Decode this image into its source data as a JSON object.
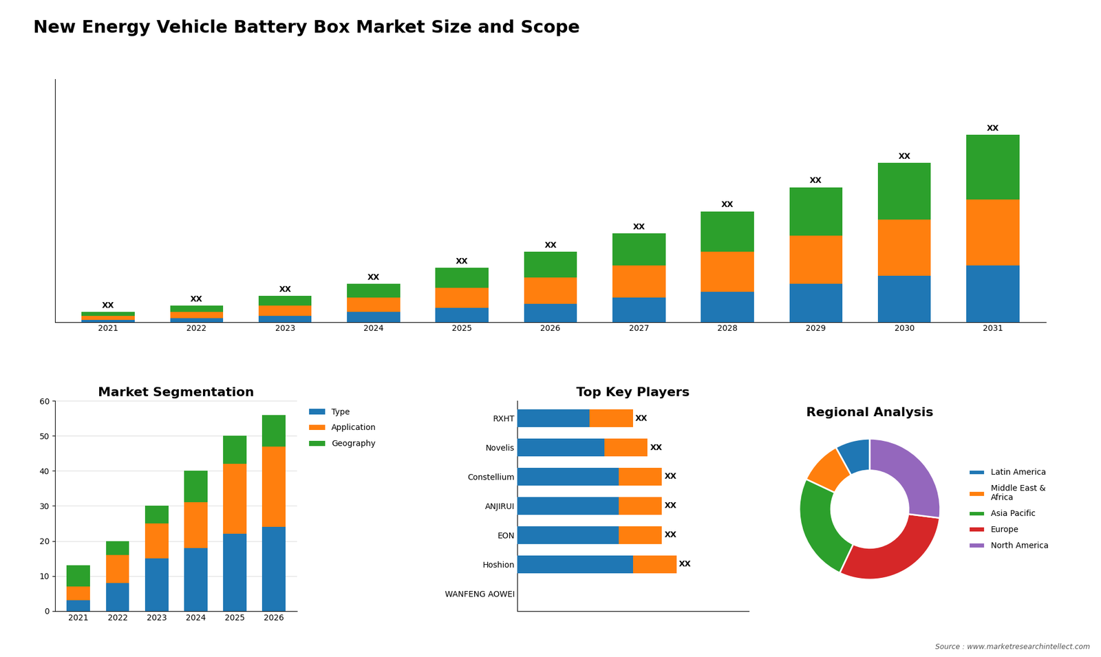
{
  "title": "New Energy Vehicle Battery Box Market Size and Scope",
  "annotations": [
    "Source : www.marketresearchintellect.com"
  ],
  "chart_data": [
    {
      "type": "bar",
      "stacked": true,
      "tick_labels": "x",
      "categories": [
        "2021",
        "2022",
        "2023",
        "2024",
        "2025",
        "2026",
        "2027",
        "2028",
        "2029",
        "2030",
        "2031"
      ],
      "series": [
        {
          "values": [
            1,
            2,
            3,
            5,
            7,
            9,
            12,
            15,
            19,
            23,
            28
          ]
        },
        {
          "values": [
            2,
            3,
            5,
            7,
            10,
            13,
            16,
            20,
            24,
            28,
            33
          ]
        },
        {
          "values": [
            2,
            3,
            5,
            7,
            10,
            13,
            16,
            20,
            24,
            28,
            32
          ],
          "value_labels": [
            "XX",
            "XX",
            "XX",
            "XX",
            "XX",
            "XX",
            "XX",
            "XX",
            "XX",
            "XX",
            "XX"
          ]
        }
      ],
      "ylim": [
        0,
        120.9
      ]
    },
    {
      "type": "bar",
      "stacked": true,
      "title": "Market Segmentation",
      "categories": [
        "2021",
        "2022",
        "2023",
        "2024",
        "2025",
        "2026"
      ],
      "series": [
        {
          "name": "Type",
          "values": [
            3,
            8,
            15,
            18,
            22,
            24
          ]
        },
        {
          "name": "Application",
          "values": [
            4,
            8,
            10,
            13,
            20,
            23
          ]
        },
        {
          "name": "Geography",
          "values": [
            6,
            4,
            5,
            9,
            8,
            9
          ]
        }
      ],
      "ylim": [
        0,
        60
      ],
      "yticks": [
        0,
        10,
        20,
        30,
        40,
        50,
        60
      ],
      "grid": true,
      "legend": "upper left"
    },
    {
      "type": "bar",
      "stacked": true,
      "orientation": "horizontal",
      "tick_labels": "y",
      "title": "Top Key Players",
      "categories": [
        "WANFENG AOWEI",
        "Hoshion",
        "EON",
        "ANJIRUI",
        "Constellium",
        "Novelis",
        "RXHT"
      ],
      "series": [
        {
          "values": [
            0,
            8,
            7,
            7,
            7,
            6,
            5
          ]
        },
        {
          "values": [
            0,
            3,
            3,
            3,
            3,
            3,
            3
          ],
          "value_labels": [
            null,
            "XX",
            "XX",
            "XX",
            "XX",
            "XX",
            "XX"
          ]
        }
      ],
      "xlim": [
        0,
        16
      ]
    },
    {
      "type": "pie",
      "title": "Regional Analysis",
      "categories": [
        "Latin America",
        "Middle East &\nAfrica",
        "Asia Pacific",
        "Europe",
        "North America"
      ],
      "values": [
        8,
        10,
        25,
        30,
        27
      ],
      "legend": "center left"
    }
  ]
}
